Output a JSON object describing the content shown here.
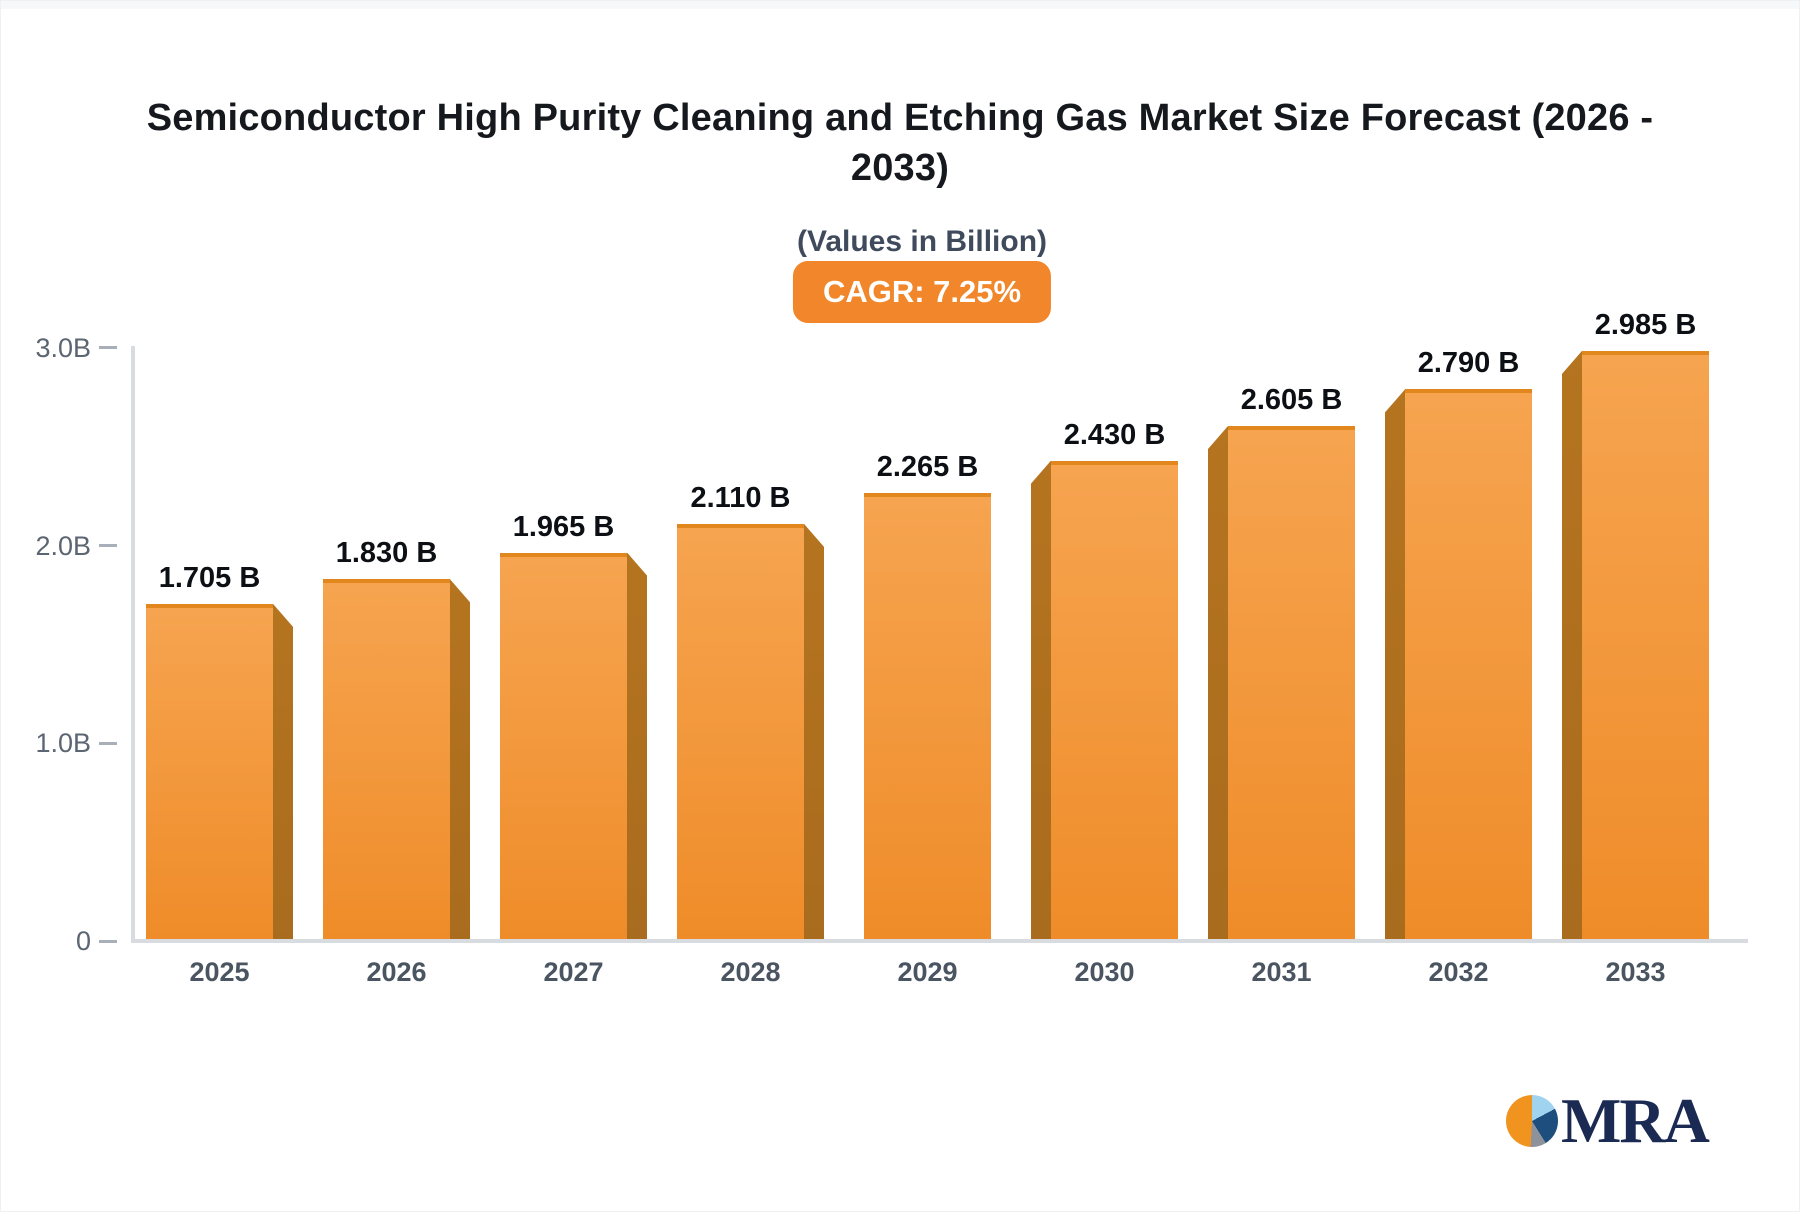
{
  "header": {
    "title_line1": "Semiconductor High Purity Cleaning and Etching Gas Market Size Forecast (2026 -",
    "title_line2": "2033)",
    "subtitle": "(Values in Billion)",
    "cagr_badge": "CAGR: 7.25%"
  },
  "chart_data": {
    "type": "bar",
    "title": "Semiconductor High Purity Cleaning and Etching Gas Market Size Forecast (2026 - 2033)",
    "subtitle": "(Values in Billion)",
    "cagr": "7.25%",
    "categories": [
      "2025",
      "2026",
      "2027",
      "2028",
      "2029",
      "2030",
      "2031",
      "2032",
      "2033"
    ],
    "values": [
      1.705,
      1.83,
      1.965,
      2.11,
      2.265,
      2.43,
      2.605,
      2.79,
      2.985
    ],
    "value_labels": [
      "1.705 B",
      "1.830 B",
      "1.965 B",
      "2.110 B",
      "2.265 B",
      "2.430 B",
      "2.605 B",
      "2.790 B",
      "2.985 B"
    ],
    "unit": "Billion",
    "xlabel": "",
    "ylabel": "",
    "ylim": [
      0,
      3.0
    ],
    "yticks": [
      {
        "label": "0",
        "value": 0
      },
      {
        "label": "1.0B",
        "value": 1.0
      },
      {
        "label": "2.0B",
        "value": 2.0
      },
      {
        "label": "3.0B",
        "value": 3.0
      }
    ],
    "grid": false,
    "legend": null,
    "style": "3d-perspective-bars"
  },
  "colors": {
    "bar_face_top": "#f6a450",
    "bar_face_bottom": "#ef8c29",
    "bar_top_border": "#e2861e",
    "bar_side_dark": "#ae6e20",
    "badge_background": "#f1872a",
    "badge_text": "#ffffff",
    "axis_line": "#d8dbe0",
    "tick_text": "#5c6572",
    "category_text": "#4a5561",
    "title_text": "#15181d",
    "subtitle_text": "#3f4b5c",
    "logo_navy": "#1b2a52",
    "logo_orange": "#f0941f",
    "logo_lightblue": "#9fd3ee",
    "logo_blue": "#1d4e7d",
    "logo_gray": "#8e929a"
  },
  "logo": {
    "text": "MRA"
  }
}
